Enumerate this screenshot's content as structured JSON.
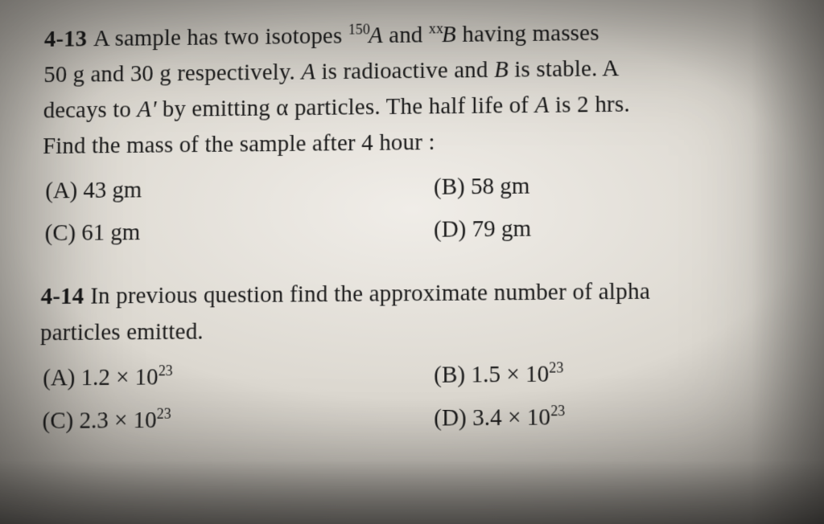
{
  "q1": {
    "number": "4-13",
    "line1_a": "A sample has two isotopes ",
    "iso1": "150",
    "var_a": "A",
    "line1_b": " and ",
    "iso2": "xx",
    "var_b": "B",
    "line1_c": " having masses",
    "line2_a": "50 g and 30 g respectively. ",
    "line2_b": " is radioactive and ",
    "line2_c": " is stable. A",
    "line3_a": "decays to ",
    "a_prime": "A'",
    "line3_b": " by emitting α particles. The half life of ",
    "line3_c": " is 2 hrs.",
    "line4": "Find the mass of the sample after 4 hour :",
    "options": {
      "a": "(A) 43 gm",
      "b": "(B) 58 gm",
      "c": "(C) 61 gm",
      "d": "(D) 79 gm"
    }
  },
  "q2": {
    "number": "4-14",
    "line1": "In previous question find the approximate number of alpha",
    "line2": "particles emitted.",
    "options": {
      "a_pre": "(A) 1.2 × 10",
      "b_pre": "(B) 1.5 × 10",
      "c_pre": "(C) 2.3 × 10",
      "d_pre": "(D) 3.4 × 10",
      "exp": "23"
    }
  }
}
